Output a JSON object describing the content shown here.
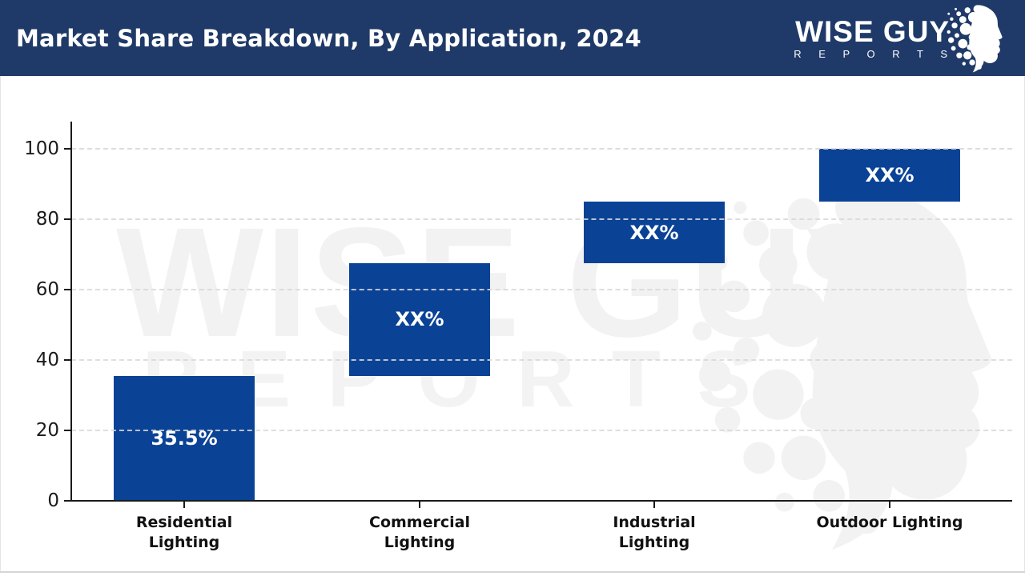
{
  "header": {
    "title": "Market Share Breakdown, By Application, 2024",
    "bg_color": "#1f3a68",
    "logo": {
      "name": "WISE GUY",
      "subtitle": "R E P O R T S"
    }
  },
  "watermark": {
    "line1": "WISE GUY",
    "line2": "REPORTS"
  },
  "chart_data": {
    "type": "bar",
    "subtype": "stacked-floating-percentage-bars",
    "title": "Market Share Breakdown, By Application, 2024",
    "unit": "%",
    "categories": [
      "Residential Lighting",
      "Commercial Lighting",
      "Industrial Lighting",
      "Outdoor Lighting"
    ],
    "categories_lines": [
      [
        "Residential",
        "Lighting"
      ],
      [
        "Commercial",
        "Lighting"
      ],
      [
        "Industrial",
        "Lighting"
      ],
      [
        "Outdoor Lighting"
      ]
    ],
    "segments": [
      {
        "category": "Residential Lighting",
        "start": 0,
        "end": 35.5,
        "label": "35.5%"
      },
      {
        "category": "Commercial Lighting",
        "start": 35.5,
        "end": 67.5,
        "label": "XX%"
      },
      {
        "category": "Industrial Lighting",
        "start": 67.5,
        "end": 85,
        "label": "XX%"
      },
      {
        "category": "Outdoor Lighting",
        "start": 85,
        "end": 100,
        "label": "XX%"
      }
    ],
    "ylim": [
      0,
      100
    ],
    "yticks": [
      0,
      20,
      40,
      60,
      80,
      100
    ],
    "grid": "horizontal-dashed",
    "legend": "none",
    "bar_color": "#0a4296",
    "bar_label_color": "#ffffff",
    "axis_color": "#1a1a1a",
    "gridline_color": "#d9d9d9"
  }
}
